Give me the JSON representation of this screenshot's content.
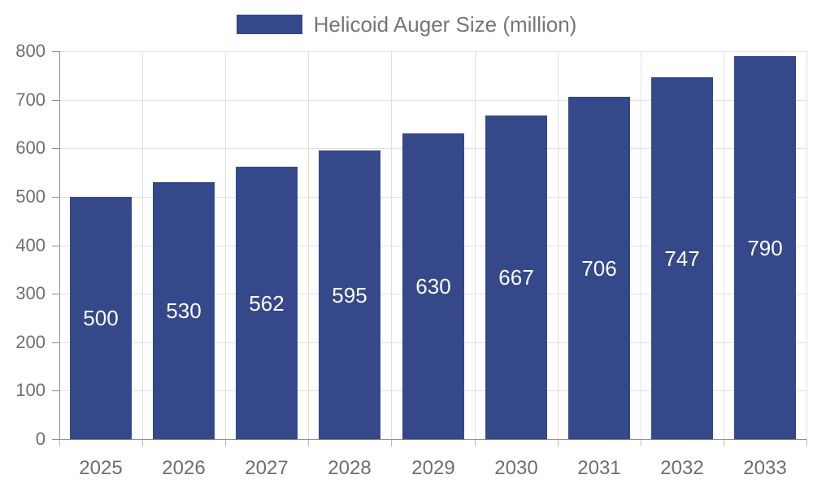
{
  "chart_data": {
    "type": "bar",
    "title": "",
    "legend": {
      "label": "Helicoid Auger Size (million)",
      "position": "top-center"
    },
    "categories": [
      "2025",
      "2026",
      "2027",
      "2028",
      "2029",
      "2030",
      "2031",
      "2032",
      "2033"
    ],
    "series": [
      {
        "name": "Helicoid Auger Size (million)",
        "values": [
          500,
          530,
          562,
          595,
          630,
          667,
          706,
          747,
          790
        ]
      }
    ],
    "bar_value_labels": [
      "500",
      "530",
      "562",
      "595",
      "630",
      "667",
      "706",
      "747",
      "790"
    ],
    "xlabel": "",
    "ylabel": "",
    "ylim": [
      0,
      800
    ],
    "yticks": [
      0,
      100,
      200,
      300,
      400,
      500,
      600,
      700,
      800
    ],
    "grid": "on",
    "colors": {
      "bar": "#35488a",
      "bar_label_text": "#ffffff",
      "legend_text": "#757575",
      "axis_label_text": "#6e6e6e",
      "axis_line": "#8c8c8c",
      "gridline": "#e0e0e0",
      "background": "#ffffff"
    }
  }
}
